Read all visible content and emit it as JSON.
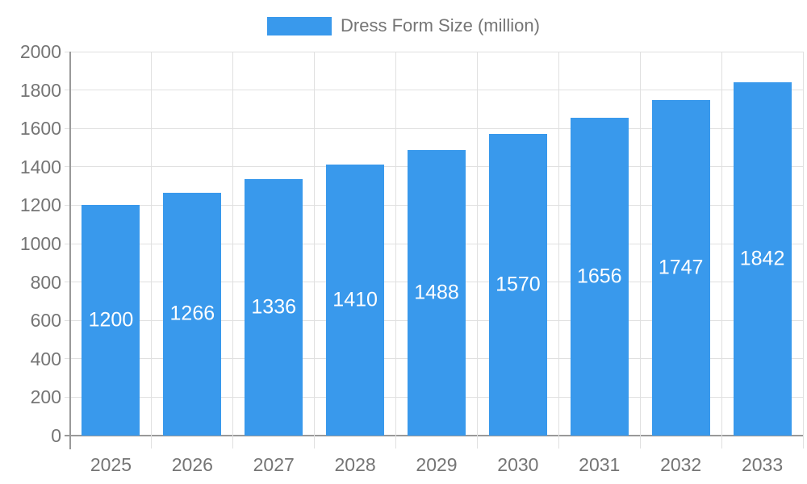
{
  "chart_data": {
    "type": "bar",
    "title": "",
    "legend_label": "Dress Form Size (million)",
    "legend_position": "top",
    "categories": [
      "2025",
      "2026",
      "2027",
      "2028",
      "2029",
      "2030",
      "2031",
      "2032",
      "2033"
    ],
    "series": [
      {
        "name": "Dress Form Size (million)",
        "values": [
          1200,
          1266,
          1336,
          1410,
          1488,
          1570,
          1656,
          1747,
          1842
        ]
      }
    ],
    "value_labels_shown": true,
    "xlabel": "",
    "ylabel": "",
    "ylim": [
      0,
      2000
    ],
    "ytick_step": 200,
    "yticks": [
      0,
      200,
      400,
      600,
      800,
      1000,
      1200,
      1400,
      1600,
      1800,
      2000
    ],
    "grid": "on",
    "colors": {
      "bar": "#3999EC",
      "value_label_text": "#ffffff",
      "axis_line": "#999999",
      "gridline": "#e0e0e0",
      "tick_label_text": "#757575",
      "legend_text": "#757575",
      "background": "#ffffff"
    }
  }
}
